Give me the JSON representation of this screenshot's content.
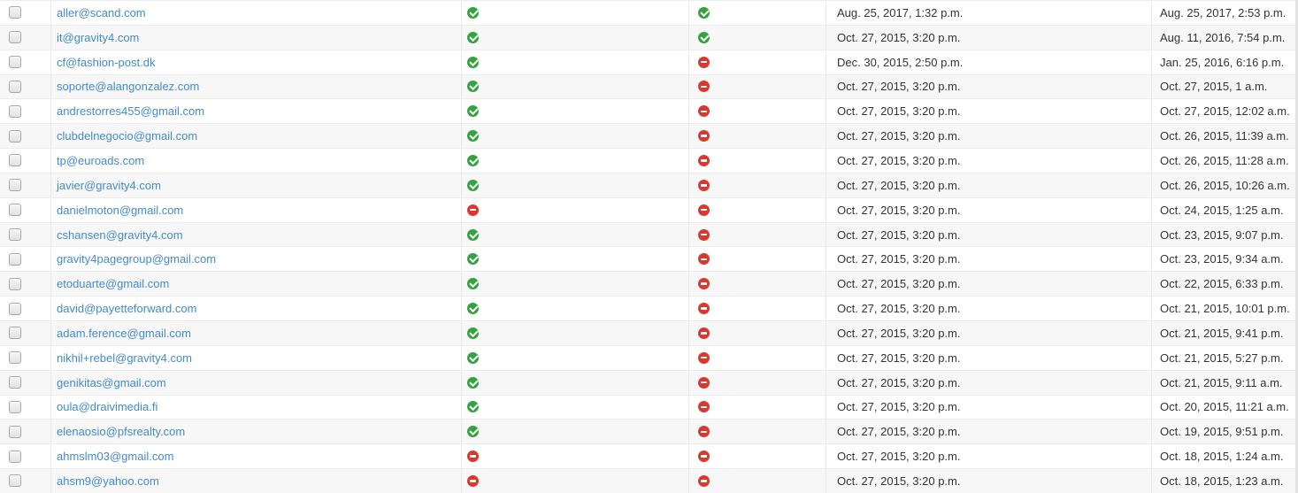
{
  "colors": {
    "link_blue": "#428bca",
    "yes_green": "#35a240",
    "no_red": "#d8392e",
    "alt_row_bg": "#f7f7f7"
  },
  "icons": {
    "yes": "check-circle-icon",
    "no": "minus-circle-icon"
  },
  "table": {
    "rows": [
      {
        "checked": false,
        "email": "aller@scand.com",
        "status_1": "yes",
        "status_2": "yes",
        "datetime_1": "Aug. 25, 2017, 1:32 p.m.",
        "datetime_2": "Aug. 25, 2017, 2:53 p.m."
      },
      {
        "checked": false,
        "email": "it@gravity4.com",
        "status_1": "yes",
        "status_2": "yes",
        "datetime_1": "Oct. 27, 2015, 3:20 p.m.",
        "datetime_2": "Aug. 11, 2016, 7:54 p.m."
      },
      {
        "checked": false,
        "email": "cf@fashion-post.dk",
        "status_1": "yes",
        "status_2": "no",
        "datetime_1": "Dec. 30, 2015, 2:50 p.m.",
        "datetime_2": "Jan. 25, 2016, 6:16 p.m."
      },
      {
        "checked": false,
        "email": "soporte@alangonzalez.com",
        "status_1": "yes",
        "status_2": "no",
        "datetime_1": "Oct. 27, 2015, 3:20 p.m.",
        "datetime_2": "Oct. 27, 2015, 1 a.m."
      },
      {
        "checked": false,
        "email": "andrestorres455@gmail.com",
        "status_1": "yes",
        "status_2": "no",
        "datetime_1": "Oct. 27, 2015, 3:20 p.m.",
        "datetime_2": "Oct. 27, 2015, 12:02 a.m."
      },
      {
        "checked": false,
        "email": "clubdelnegocio@gmail.com",
        "status_1": "yes",
        "status_2": "no",
        "datetime_1": "Oct. 27, 2015, 3:20 p.m.",
        "datetime_2": "Oct. 26, 2015, 11:39 a.m."
      },
      {
        "checked": false,
        "email": "tp@euroads.com",
        "status_1": "yes",
        "status_2": "no",
        "datetime_1": "Oct. 27, 2015, 3:20 p.m.",
        "datetime_2": "Oct. 26, 2015, 11:28 a.m."
      },
      {
        "checked": false,
        "email": "javier@gravity4.com",
        "status_1": "yes",
        "status_2": "no",
        "datetime_1": "Oct. 27, 2015, 3:20 p.m.",
        "datetime_2": "Oct. 26, 2015, 10:26 a.m."
      },
      {
        "checked": false,
        "email": "danielmoton@gmail.com",
        "status_1": "no",
        "status_2": "no",
        "datetime_1": "Oct. 27, 2015, 3:20 p.m.",
        "datetime_2": "Oct. 24, 2015, 1:25 a.m."
      },
      {
        "checked": false,
        "email": "cshansen@gravity4.com",
        "status_1": "yes",
        "status_2": "no",
        "datetime_1": "Oct. 27, 2015, 3:20 p.m.",
        "datetime_2": "Oct. 23, 2015, 9:07 p.m."
      },
      {
        "checked": false,
        "email": "gravity4pagegroup@gmail.com",
        "status_1": "yes",
        "status_2": "no",
        "datetime_1": "Oct. 27, 2015, 3:20 p.m.",
        "datetime_2": "Oct. 23, 2015, 9:34 a.m."
      },
      {
        "checked": false,
        "email": "etoduarte@gmail.com",
        "status_1": "yes",
        "status_2": "no",
        "datetime_1": "Oct. 27, 2015, 3:20 p.m.",
        "datetime_2": "Oct. 22, 2015, 6:33 p.m."
      },
      {
        "checked": false,
        "email": "david@payetteforward.com",
        "status_1": "yes",
        "status_2": "no",
        "datetime_1": "Oct. 27, 2015, 3:20 p.m.",
        "datetime_2": "Oct. 21, 2015, 10:01 p.m."
      },
      {
        "checked": false,
        "email": "adam.ference@gmail.com",
        "status_1": "yes",
        "status_2": "no",
        "datetime_1": "Oct. 27, 2015, 3:20 p.m.",
        "datetime_2": "Oct. 21, 2015, 9:41 p.m."
      },
      {
        "checked": false,
        "email": "nikhil+rebel@gravity4.com",
        "status_1": "yes",
        "status_2": "no",
        "datetime_1": "Oct. 27, 2015, 3:20 p.m.",
        "datetime_2": "Oct. 21, 2015, 5:27 p.m."
      },
      {
        "checked": false,
        "email": "genikitas@gmail.com",
        "status_1": "yes",
        "status_2": "no",
        "datetime_1": "Oct. 27, 2015, 3:20 p.m.",
        "datetime_2": "Oct. 21, 2015, 9:11 a.m."
      },
      {
        "checked": false,
        "email": "oula@draivimedia.fi",
        "status_1": "yes",
        "status_2": "no",
        "datetime_1": "Oct. 27, 2015, 3:20 p.m.",
        "datetime_2": "Oct. 20, 2015, 11:21 a.m."
      },
      {
        "checked": false,
        "email": "elenaosio@pfsrealty.com",
        "status_1": "yes",
        "status_2": "no",
        "datetime_1": "Oct. 27, 2015, 3:20 p.m.",
        "datetime_2": "Oct. 19, 2015, 9:51 p.m."
      },
      {
        "checked": false,
        "email": "ahmslm03@gmail.com",
        "status_1": "no",
        "status_2": "no",
        "datetime_1": "Oct. 27, 2015, 3:20 p.m.",
        "datetime_2": "Oct. 18, 2015, 1:24 a.m."
      },
      {
        "checked": false,
        "email": "ahsm9@yahoo.com",
        "status_1": "no",
        "status_2": "no",
        "datetime_1": "Oct. 27, 2015, 3:20 p.m.",
        "datetime_2": "Oct. 18, 2015, 1:23 a.m."
      }
    ]
  }
}
